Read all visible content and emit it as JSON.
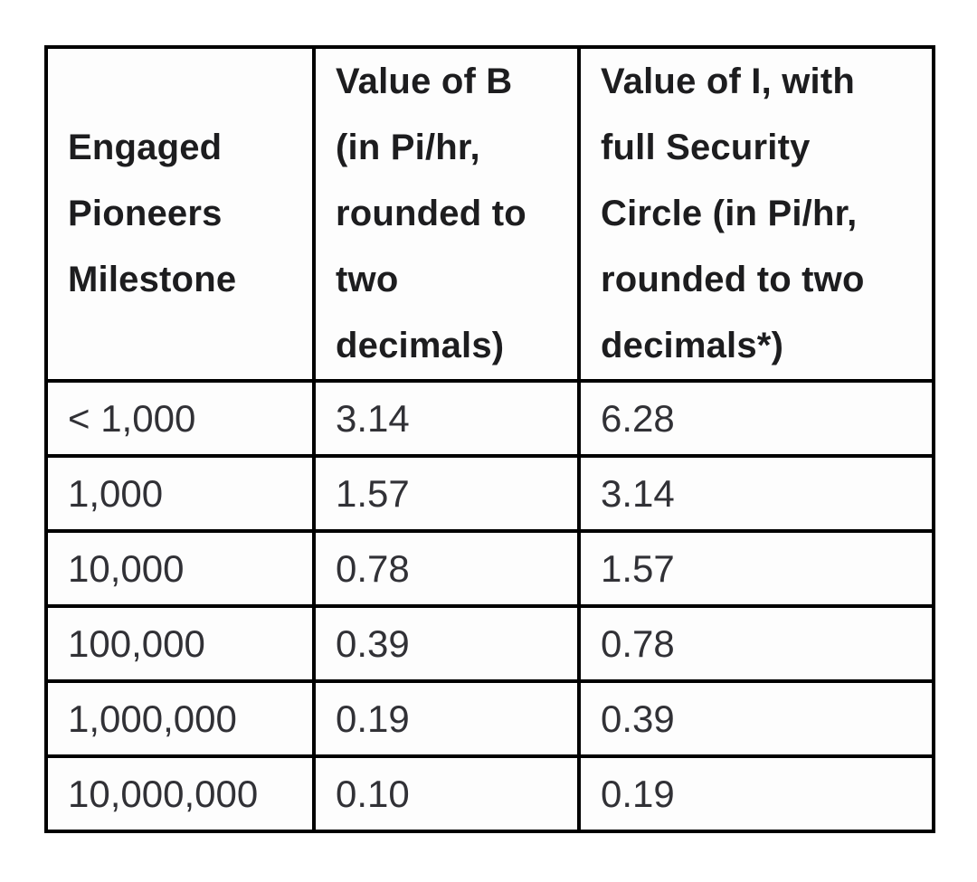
{
  "table": {
    "headers": [
      "Engaged Pioneers Milestone",
      "Value of B (in Pi/hr, rounded to two decimals)",
      "Value of I, with full Security Circle (in Pi/hr, rounded to two decimals*)"
    ],
    "rows": [
      [
        "< 1,000",
        "3.14",
        "6.28"
      ],
      [
        "1,000",
        "1.57",
        "3.14"
      ],
      [
        "10,000",
        "0.78",
        "1.57"
      ],
      [
        "100,000",
        "0.39",
        "0.78"
      ],
      [
        "1,000,000",
        "0.19",
        "0.39"
      ],
      [
        "10,000,000",
        "0.10",
        "0.19"
      ]
    ]
  },
  "chart_data": {
    "type": "table",
    "title": "",
    "columns": [
      "Engaged Pioneers Milestone",
      "Value of B (in Pi/hr, rounded to two decimals)",
      "Value of I, with full Security Circle (in Pi/hr, rounded to two decimals*)"
    ],
    "milestones": [
      "< 1,000",
      "1,000",
      "10,000",
      "100,000",
      "1,000,000",
      "10,000,000"
    ],
    "value_of_B": [
      3.14,
      1.57,
      0.78,
      0.39,
      0.19,
      0.1
    ],
    "value_of_I_full_security_circle": [
      6.28,
      3.14,
      1.57,
      0.78,
      0.39,
      0.19
    ]
  },
  "colors": {
    "border": "#000000",
    "header_text": "#1d1d1f",
    "body_text": "#313136",
    "cell_background": "#fdfdfd",
    "page_background": "#ffffff"
  }
}
